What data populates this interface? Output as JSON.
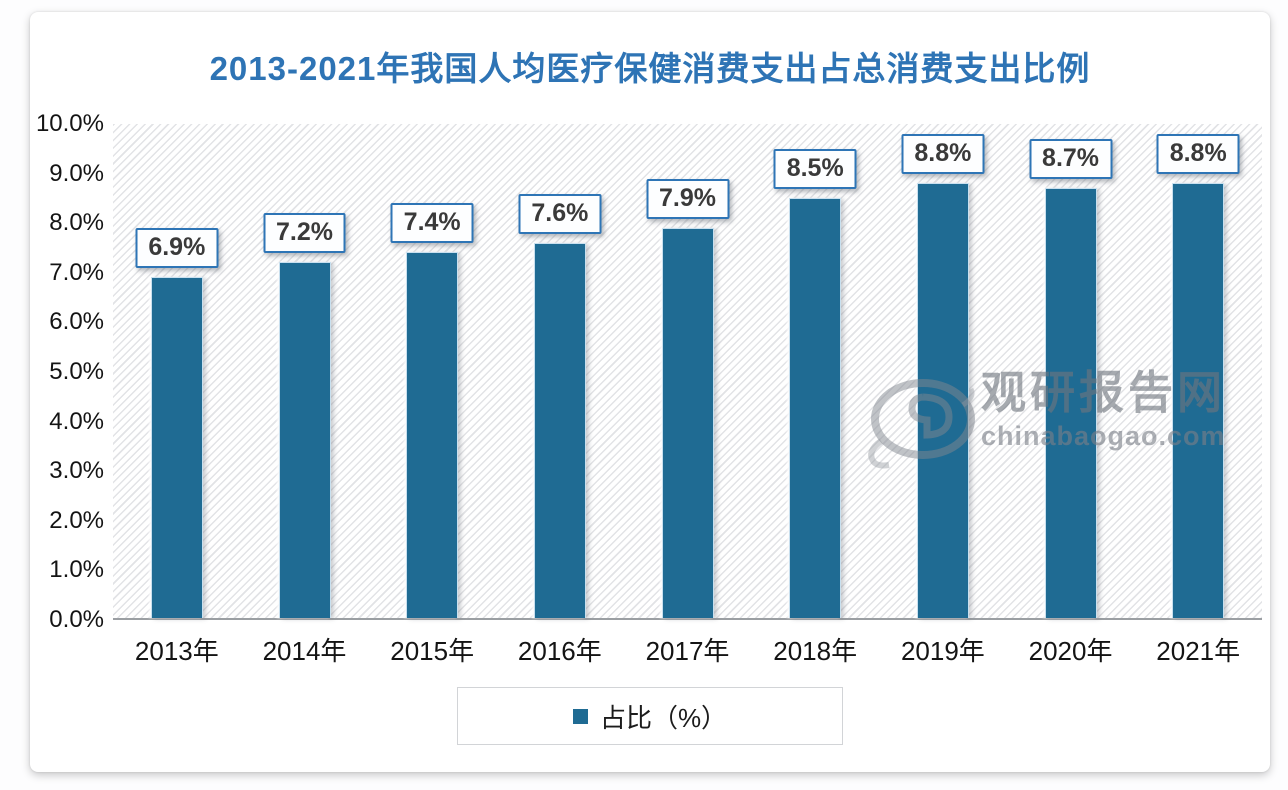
{
  "page": {
    "watermark": {
      "brand": "观研报告网",
      "domain": "chinabaogao.com",
      "logo_icon": "swirl-globe-logo"
    }
  },
  "chart_data": {
    "type": "bar",
    "title": "2013-2021年我国人均医疗保健消费支出占总消费支出比例",
    "categories": [
      "2013年",
      "2014年",
      "2015年",
      "2016年",
      "2017年",
      "2018年",
      "2019年",
      "2020年",
      "2021年"
    ],
    "series": [
      {
        "name": "占比（%）",
        "values": [
          6.9,
          7.2,
          7.4,
          7.6,
          7.9,
          8.5,
          8.8,
          8.7,
          8.8
        ]
      }
    ],
    "data_labels": [
      "6.9%",
      "7.2%",
      "7.4%",
      "7.6%",
      "7.9%",
      "8.5%",
      "8.8%",
      "8.7%",
      "8.8%"
    ],
    "xlabel": "",
    "ylabel": "",
    "ylim": [
      0,
      10
    ],
    "yticks": [
      "10.0%",
      "9.0%",
      "8.0%",
      "7.0%",
      "6.0%",
      "5.0%",
      "4.0%",
      "3.0%",
      "2.0%",
      "1.0%",
      "0.0%"
    ],
    "grid": false,
    "legend": {
      "label": "占比（%）",
      "position": "bottom"
    },
    "plot_background": "diagonal-hatch",
    "colors": {
      "bar": "#1F6B93",
      "title": "#2E74B5",
      "label_box_border": "#2E75B6",
      "axis_line": "#9B9FA3",
      "tick_text": "#141414",
      "watermark_text": "#70767E"
    }
  }
}
